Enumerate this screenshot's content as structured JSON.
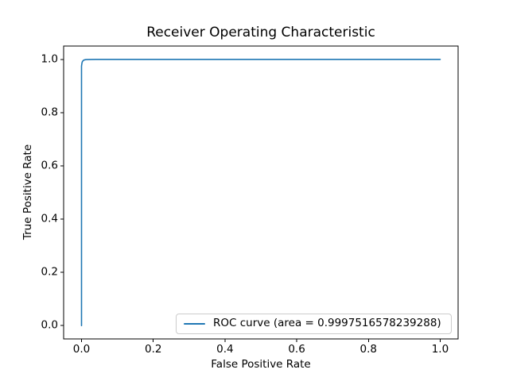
{
  "figure": {
    "background_color": "#ffffff",
    "spine_color": "#000000",
    "text_color": "#000000"
  },
  "chart_data": {
    "type": "line",
    "title": "Receiver Operating Characteristic",
    "xlabel": "False Positive Rate",
    "ylabel": "True Positive Rate",
    "xlim": [
      -0.05,
      1.05
    ],
    "ylim": [
      -0.05,
      1.05
    ],
    "grid": false,
    "xticks": [
      0.0,
      0.2,
      0.4,
      0.6,
      0.8,
      1.0
    ],
    "yticks": [
      0.0,
      0.2,
      0.4,
      0.6,
      0.8,
      1.0
    ],
    "xtick_labels": [
      "0.0",
      "0.2",
      "0.4",
      "0.6",
      "0.8",
      "1.0"
    ],
    "ytick_labels": [
      "0.0",
      "0.2",
      "0.4",
      "0.6",
      "0.8",
      "1.0"
    ],
    "legend": {
      "position": "lower right",
      "border_color": "#cccccc",
      "entries": [
        {
          "label": "ROC curve (area = 0.9997516578239288)",
          "color": "#1f77b4"
        }
      ]
    },
    "series": [
      {
        "name": "ROC curve",
        "auc": "0.9997516578239288",
        "color": "#1f77b4",
        "linewidth": 1.5,
        "x": [
          0.0,
          0.0,
          0.001,
          0.002,
          0.003,
          0.005,
          0.008,
          0.012,
          0.02,
          0.04,
          0.1,
          1.0
        ],
        "y": [
          0.0,
          0.975,
          0.985,
          0.99,
          0.993,
          0.996,
          0.998,
          0.999,
          0.9995,
          1.0,
          1.0,
          1.0
        ]
      }
    ]
  }
}
